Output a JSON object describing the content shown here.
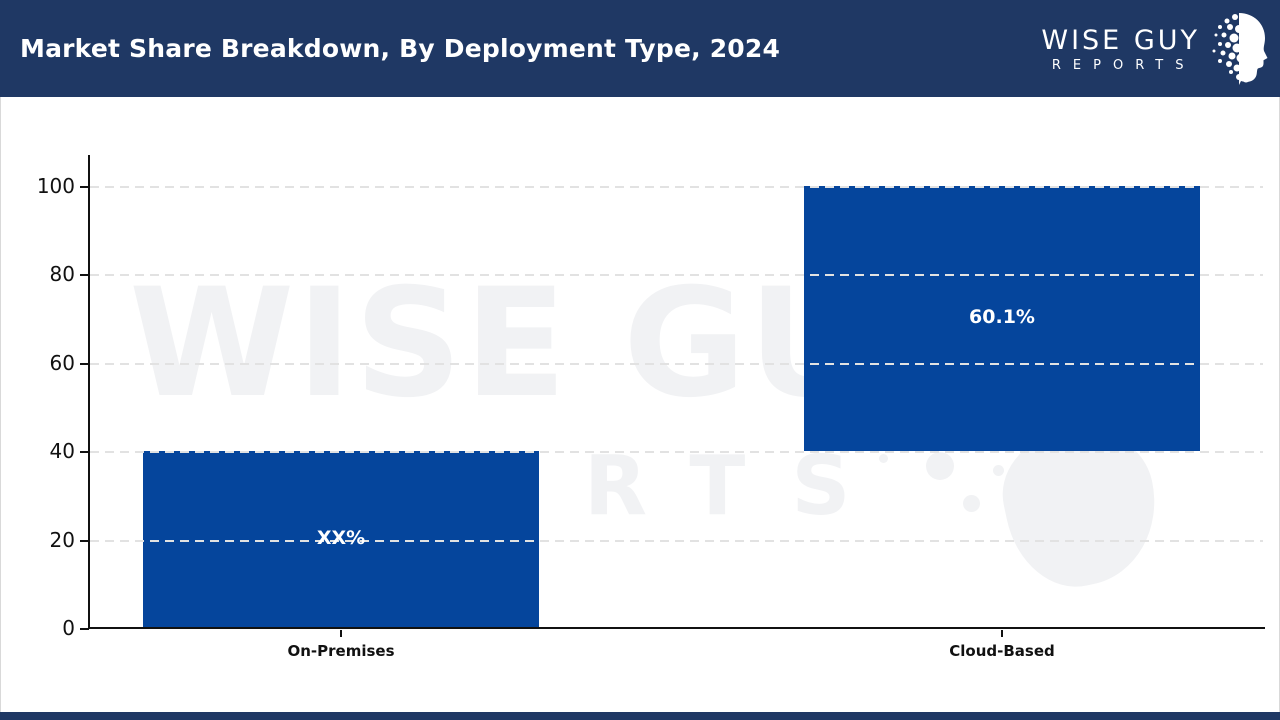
{
  "header": {
    "title": "Market Share Breakdown, By Deployment Type, 2024",
    "logo": {
      "name": "WISE GUY",
      "subname": "REPORTS"
    }
  },
  "watermark": {
    "line1": "WISE GUY",
    "line2": "REPORTS"
  },
  "colors": {
    "header_bg": "#1f3864",
    "footer_bg": "#1f3864",
    "bar_fill": "#05459c",
    "bar_label": "#ffffff",
    "gridline": "#e2e2e2",
    "axis": "#111111",
    "watermark": "#f1f2f4"
  },
  "chart_data": {
    "type": "bar",
    "subtype": "floating-segment-waterfall",
    "title": "Market Share Breakdown, By Deployment Type, 2024",
    "categories": [
      "On-Premises",
      "Cloud-Based"
    ],
    "bars": [
      {
        "category": "On-Premises",
        "start": 0,
        "end": 40,
        "label": "XX%"
      },
      {
        "category": "Cloud-Based",
        "start": 40,
        "end": 100,
        "label": "60.1%"
      }
    ],
    "yticks": [
      0,
      20,
      40,
      60,
      80,
      100
    ],
    "ylim": [
      0,
      107
    ],
    "xlabel": "",
    "ylabel": "",
    "grid": "horizontal-dashed",
    "legend": "none"
  }
}
